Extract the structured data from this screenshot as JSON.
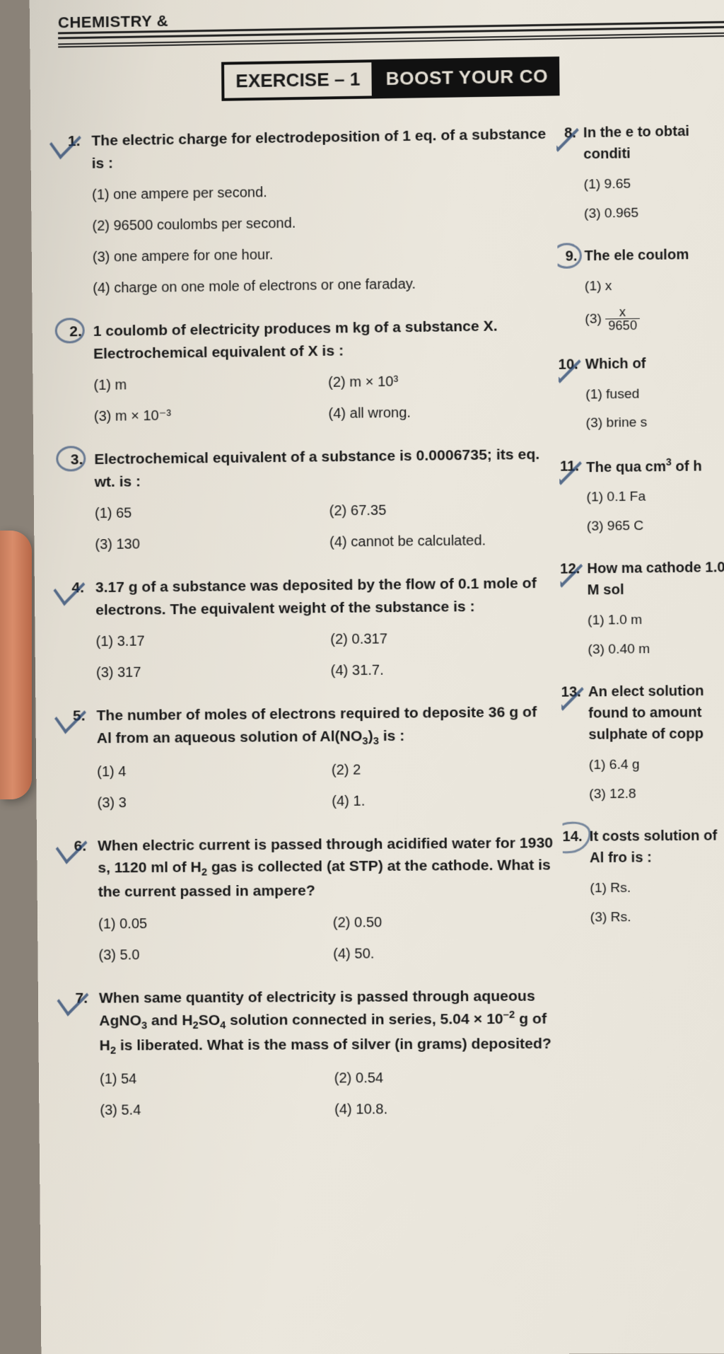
{
  "header": {
    "title_cut": "CHEMISTRY &"
  },
  "exercise_bar": {
    "label": "EXERCISE – 1",
    "boost": "BOOST YOUR CO"
  },
  "left": [
    {
      "num": "1.",
      "mark": "check",
      "stem": "The electric charge for electrodeposition of 1 eq. of a substance is :",
      "opts": [
        "(1) one ampere per second.",
        "(2) 96500 coulombs per second.",
        "(3) one ampere for one hour.",
        "(4) charge on one mole of electrons or one faraday."
      ],
      "single": true
    },
    {
      "num": "2.",
      "mark": "circ",
      "stem": "1 coulomb of electricity produces m kg of a substance X. Electrochemical equivalent of X is :",
      "opts": [
        "(1) m",
        "(2) m × 10³",
        "(3) m × 10⁻³",
        "(4) all wrong."
      ]
    },
    {
      "num": "3.",
      "mark": "circ",
      "stem": "Electrochemical equivalent of a substance is 0.0006735; its eq. wt. is :",
      "opts": [
        "(1) 65",
        "(2) 67.35",
        "(3) 130",
        "(4) cannot be calculated."
      ]
    },
    {
      "num": "4.",
      "mark": "check",
      "stem": "3.17 g of a substance was deposited by the flow of 0.1 mole of electrons. The equivalent weight of the substance is :",
      "opts": [
        "(1) 3.17",
        "(2) 0.317",
        "(3) 317",
        "(4) 31.7."
      ]
    },
    {
      "num": "5.",
      "mark": "check",
      "stem_html": "The number of moles of electrons required to deposite 36 g of Al from an aqueous solution of Al(NO<span class='sub'>3</span>)<span class='sub'>3</span> is :",
      "opts": [
        "(1) 4",
        "(2) 2",
        "(3) 3",
        "(4) 1."
      ]
    },
    {
      "num": "6.",
      "mark": "check",
      "stem_html": "When electric current is passed through acidified water for 1930 s, 1120 ml of H<span class='sub'>2</span> gas is collected (at STP) at the cathode. What is the current passed in ampere?",
      "opts": [
        "(1) 0.05",
        "(2) 0.50",
        "(3) 5.0",
        "(4) 50."
      ]
    },
    {
      "num": "7.",
      "mark": "check",
      "stem_html": "When same quantity of electricity is passed through aqueous AgNO<span class='sub'>3</span> and H<span class='sub'>2</span>SO<span class='sub'>4</span> solution connected in series, 5.04 × 10<span class='sup'>–2</span> g of H<span class='sub'>2</span> is liberated. What is the mass of silver (in grams) deposited?",
      "opts": [
        "(1) 54",
        "(2) 0.54",
        "(3) 5.4",
        "(4) 10.8."
      ]
    }
  ],
  "right": [
    {
      "num": "8.",
      "mark": "check",
      "stem": "In the e to obtai conditi",
      "opts": [
        "(1) 9.65",
        "(3) 0.965"
      ]
    },
    {
      "num": "9.",
      "mark": "circ",
      "stem": "The ele coulom",
      "opts_html": [
        "(1) x",
        "(3) <span class='frac'><span class='n'>x</span><span class='d'>9650</span></span>"
      ]
    },
    {
      "num": "10.",
      "mark": "check",
      "stem": "Which of",
      "opts": [
        "(1) fused",
        "(3) brine s"
      ]
    },
    {
      "num": "11.",
      "mark": "check",
      "stem_html": "The qua cm<span class='sup'>3</span> of h",
      "opts": [
        "(1) 0.1 Fa",
        "(3) 965 C"
      ]
    },
    {
      "num": "12.",
      "mark": "check",
      "stem": "How ma cathode 1.0 M sol",
      "opts": [
        "(1) 1.0 m",
        "(3) 0.40 m"
      ]
    },
    {
      "num": "13.",
      "mark": "check",
      "stem": "An elect solution found to amount sulphate of copp",
      "opts": [
        "(1) 6.4 g",
        "(3) 12.8"
      ]
    },
    {
      "num": "14.",
      "mark": "amp",
      "stem": "It costs solution of Al fro is :",
      "opts": [
        "(1) Rs.",
        "(3) Rs."
      ]
    }
  ]
}
